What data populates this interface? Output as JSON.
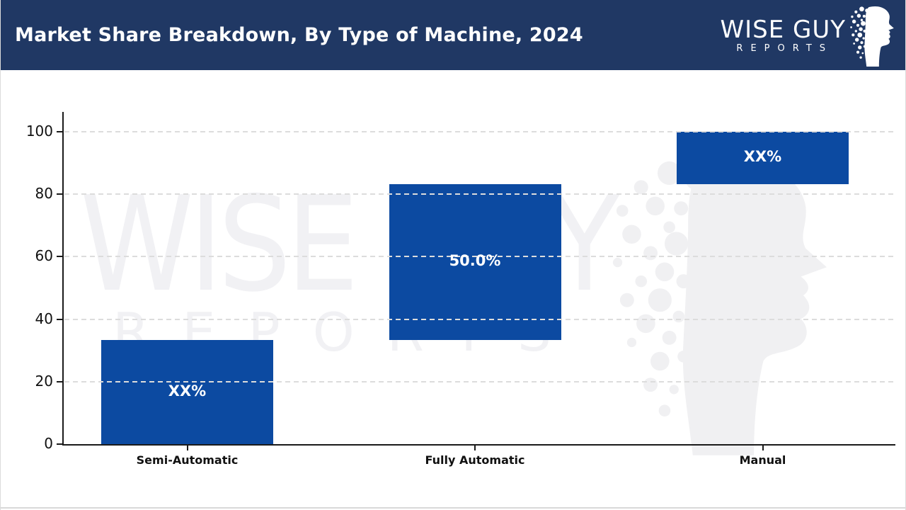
{
  "header": {
    "title": "Market Share Breakdown, By Type of Machine, 2024",
    "logo": {
      "line1": "WISE GUY",
      "line2": "REPORTS"
    }
  },
  "watermark": {
    "line1": "WISE GUY",
    "line2": "REPORTS"
  },
  "colors": {
    "header_bg": "#203864",
    "bar": "#0c4aa1",
    "grid": "#dcdcdc",
    "watermark": "#f1f1f4",
    "axis": "#1a1a1a"
  },
  "chart_data": {
    "type": "bar",
    "subtype": "floating-waterfall",
    "title": "Market Share Breakdown, By Type of Machine, 2024",
    "categories": [
      "Semi-Automatic",
      "Fully Automatic",
      "Manual"
    ],
    "bars": [
      {
        "category": "Semi-Automatic",
        "start": 0,
        "end": 33.3,
        "label": "XX%"
      },
      {
        "category": "Fully Automatic",
        "start": 33.3,
        "end": 83.3,
        "label": "50.0%"
      },
      {
        "category": "Manual",
        "start": 83.3,
        "end": 100,
        "label": "XX%"
      }
    ],
    "yticks": [
      0,
      20,
      40,
      60,
      80,
      100
    ],
    "ylim": [
      0,
      106
    ],
    "xlabel": "",
    "ylabel": "",
    "grid": "horizontal-dashed",
    "legend": "none",
    "bar_color": "#0c4aa1",
    "bar_label_color": "#ffffff"
  }
}
